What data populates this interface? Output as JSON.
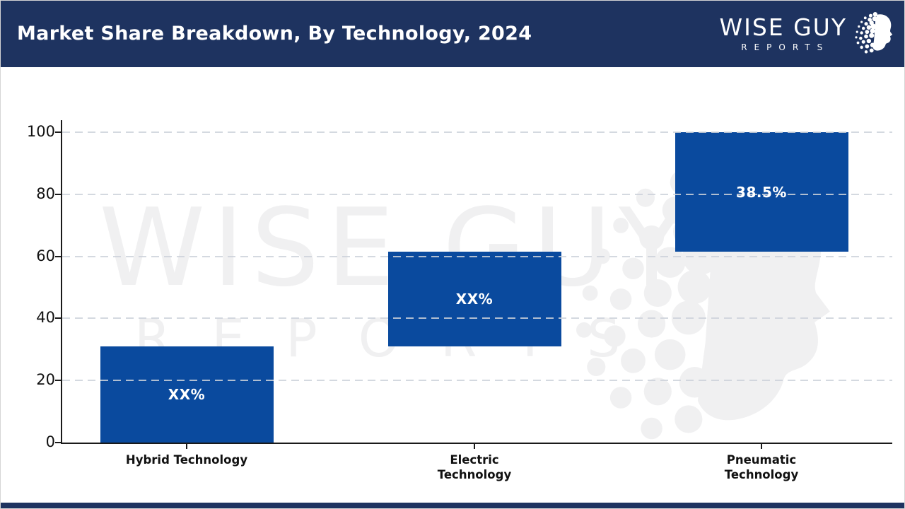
{
  "header": {
    "title": "Market Share Breakdown, By Technology, 2024",
    "bg_color": "#1e3360",
    "logo": {
      "name": "WISE GUY",
      "sub": "REPORTS"
    }
  },
  "footer": {
    "bg_color": "#1e3360"
  },
  "watermark": {
    "line1": "WISE GUY",
    "line2": "REPORTS"
  },
  "chart_data": {
    "type": "bar",
    "variant": "floating-waterfall",
    "title": "Market Share Breakdown, By Technology, 2024",
    "categories": [
      "Hybrid Technology",
      "Electric Technology",
      "Pneumatic Technology"
    ],
    "category_label_lines": [
      [
        "Hybrid Technology"
      ],
      [
        "Electric",
        "Technology"
      ],
      [
        "Pneumatic",
        "Technology"
      ]
    ],
    "segments": [
      {
        "category": "Hybrid Technology",
        "start": 0,
        "end": 31,
        "label": "XX%"
      },
      {
        "category": "Electric Technology",
        "start": 31,
        "end": 61.5,
        "label": "XX%"
      },
      {
        "category": "Pneumatic Technology",
        "start": 61.5,
        "end": 100,
        "label": "38.5%"
      }
    ],
    "xlabel": "",
    "ylabel": "",
    "ylim": [
      0,
      100
    ],
    "yticks": [
      0,
      20,
      40,
      60,
      80,
      100
    ],
    "grid": {
      "axis": "y",
      "style": "dashed",
      "color": "#d4d7dc"
    },
    "legend": null,
    "bar_color": "#0a4a9e",
    "bar_label_color": "#ffffff",
    "axis_color": "#1a1a1a",
    "tick_label_color": "#111111"
  }
}
